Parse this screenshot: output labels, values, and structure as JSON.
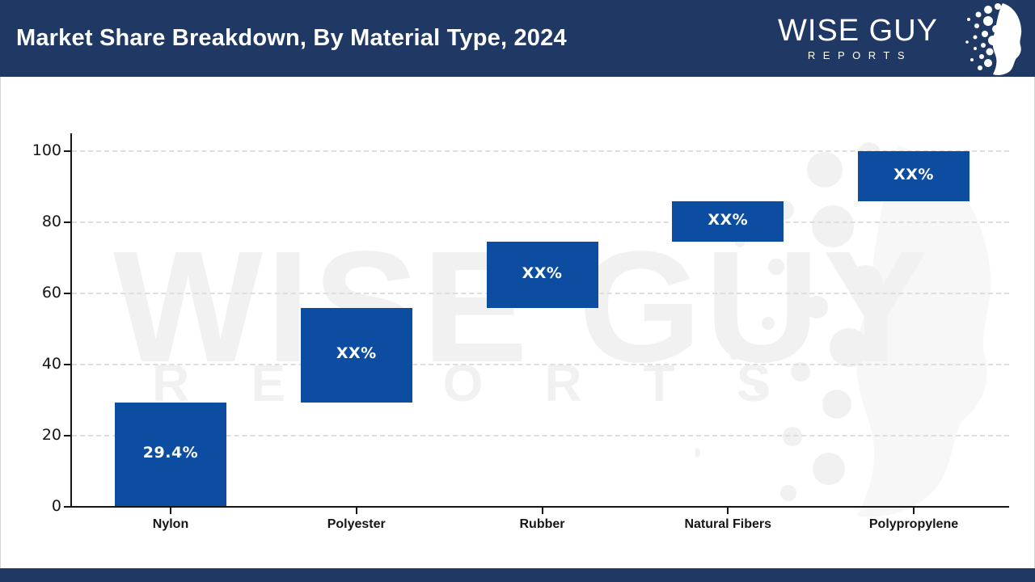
{
  "header": {
    "title": "Market Share Breakdown, By Material Type, 2024",
    "logo": {
      "primary": "WISE GUY",
      "secondary": "REPORTS"
    }
  },
  "watermark": {
    "primary": "WISE GUY",
    "secondary": "REPORTS"
  },
  "chart_data": {
    "type": "bar",
    "variant": "waterfall-floating-bars",
    "title": "Market Share Breakdown, By Material Type, 2024",
    "categories": [
      "Nylon",
      "Polyester",
      "Rubber",
      "Natural Fibers",
      "Polypropylene"
    ],
    "segments": [
      {
        "category": "Nylon",
        "start": 0,
        "end": 29.4,
        "label": "29.4%"
      },
      {
        "category": "Polyester",
        "start": 29.4,
        "end": 56,
        "label": "XX%"
      },
      {
        "category": "Rubber",
        "start": 56,
        "end": 74.5,
        "label": "XX%"
      },
      {
        "category": "Natural Fibers",
        "start": 74.5,
        "end": 86,
        "label": "XX%"
      },
      {
        "category": "Polypropylene",
        "start": 86,
        "end": 100,
        "label": "XX%"
      }
    ],
    "xlabel": "",
    "ylabel": "",
    "ylim": [
      0,
      100
    ],
    "yticks": [
      0,
      20,
      40,
      60,
      80,
      100
    ],
    "grid": {
      "horizontal": true,
      "style": "dashed",
      "color": "#dedede"
    },
    "legend": null,
    "bar_color": "#0D4DA1",
    "bar_label_color": "#ffffff"
  },
  "colors": {
    "header_bg": "#1F3864",
    "footer_bg": "#1F3864",
    "bar": "#0D4DA1",
    "axis": "#161616",
    "grid": "#dedede",
    "watermark": "#f1f1f1",
    "background": "#ffffff"
  }
}
